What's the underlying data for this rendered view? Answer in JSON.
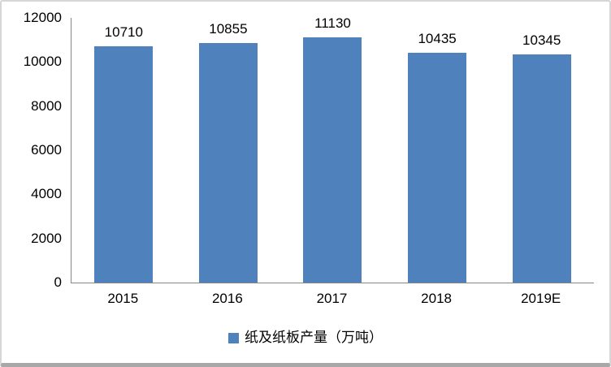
{
  "chart_data": {
    "type": "bar",
    "categories": [
      "2015",
      "2016",
      "2017",
      "2018",
      "2019E"
    ],
    "values": [
      10710,
      10855,
      11130,
      10435,
      10345
    ],
    "series": [
      {
        "name": "纸及纸板产量（万吨）",
        "values": [
          10710,
          10855,
          11130,
          10435,
          10345
        ]
      }
    ],
    "title": "",
    "xlabel": "",
    "ylabel": "",
    "ylim": [
      0,
      12000
    ],
    "yticks": [
      0,
      2000,
      4000,
      6000,
      8000,
      10000,
      12000
    ],
    "grid": "off",
    "legend_position": "bottom",
    "bar_color": "#4F81BD",
    "axis_line_color": "#868686",
    "text_color": "#000000"
  },
  "legend": {
    "label": "纸及纸板产量（万吨）",
    "marker_color": "#4F81BD"
  }
}
